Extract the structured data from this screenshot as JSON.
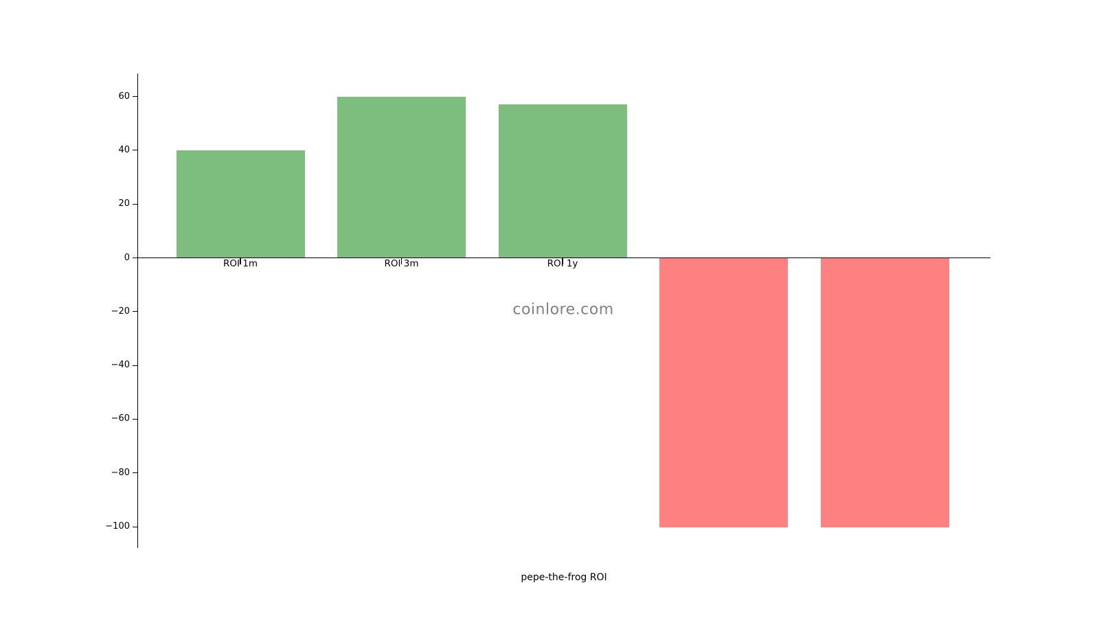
{
  "watermark": {
    "text": "coinlore.com",
    "color": "#808080"
  },
  "chart_data": {
    "type": "bar",
    "title": "",
    "xlabel": "pepe-the-frog ROI",
    "ylabel": "",
    "categories": [
      "ROI 1m",
      "ROI 3m",
      "ROI 1y",
      "",
      ""
    ],
    "values": [
      40,
      60,
      57,
      -100,
      -100
    ],
    "bar_colors": [
      "#7dbd7d",
      "#7dbd7d",
      "#7dbd7d",
      "#fd8181",
      "#fd8181"
    ],
    "positive_color": "#7dbd7d",
    "negative_color": "#fd8181",
    "axis_color": "#000000",
    "yticks": [
      {
        "value": 60,
        "label": "60"
      },
      {
        "value": 40,
        "label": "40"
      },
      {
        "value": 20,
        "label": "20"
      },
      {
        "value": 0,
        "label": "0"
      },
      {
        "value": -20,
        "label": "−20"
      },
      {
        "value": -40,
        "label": "−40"
      },
      {
        "value": -60,
        "label": "−60"
      },
      {
        "value": -80,
        "label": "−80"
      },
      {
        "value": -100,
        "label": "−100"
      }
    ],
    "ylim": [
      -108,
      68.5
    ],
    "grid": false,
    "legend": null
  }
}
